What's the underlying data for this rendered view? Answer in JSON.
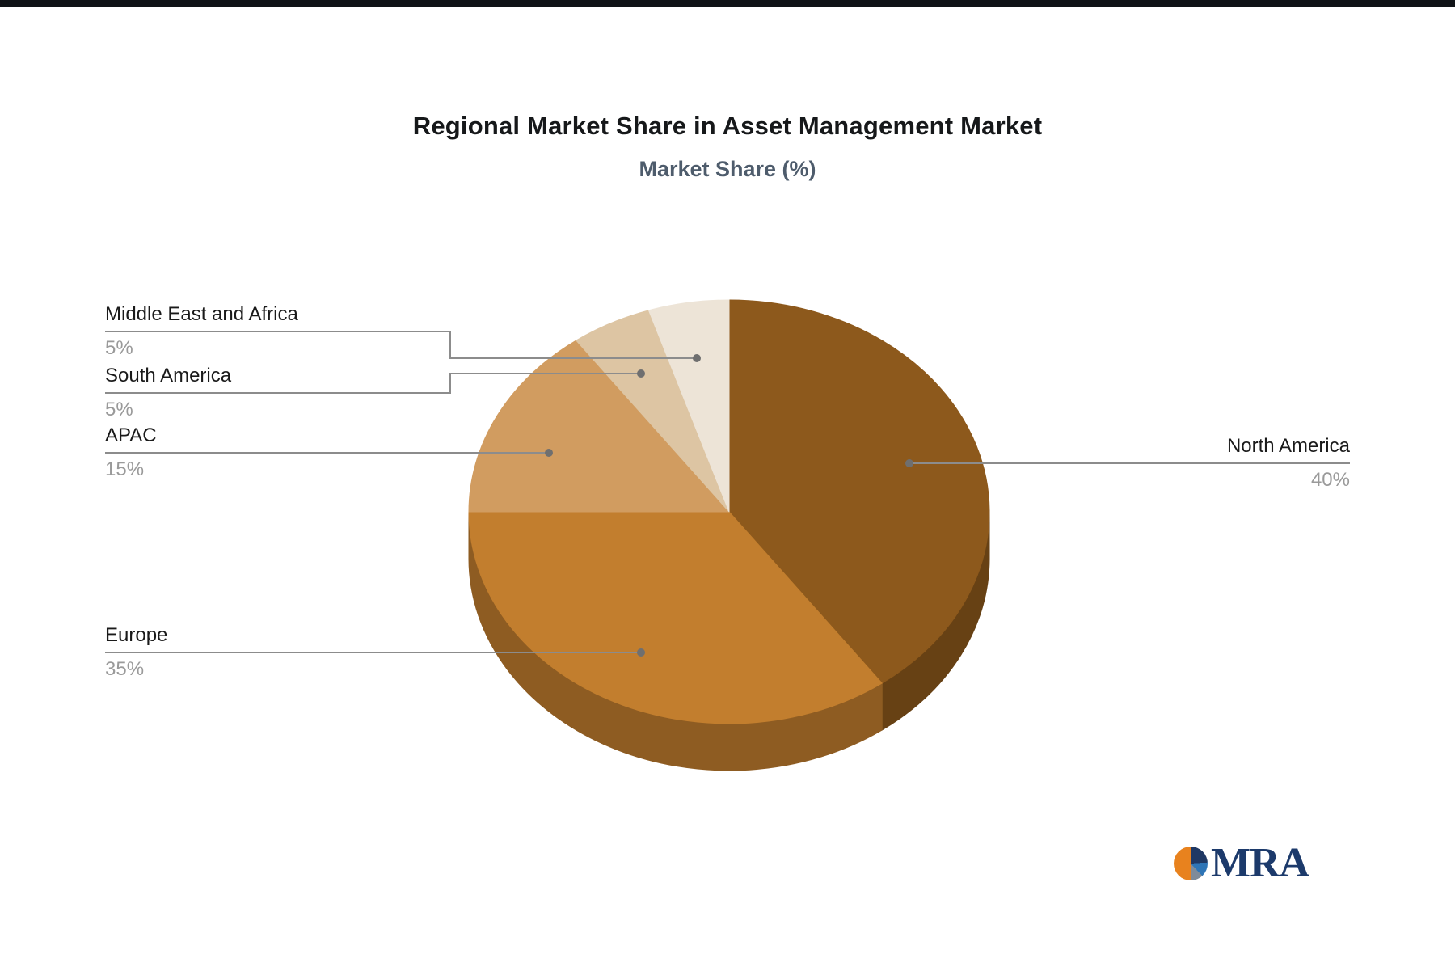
{
  "page": {
    "title": "Regional Market Share in Asset Management Market",
    "subtitle": "Market Share (%)"
  },
  "logo": {
    "text": "MRA"
  },
  "chart_data": {
    "type": "pie",
    "style": "3d",
    "title": "Regional Market Share in Asset Management Market",
    "subtitle": "Market Share (%)",
    "unit": "%",
    "direction": "clockwise",
    "start_angle": "12-o-clock",
    "legend_position": "none",
    "labels": [
      "North America",
      "Europe",
      "APAC",
      "South America",
      "Middle East and Africa"
    ],
    "values": [
      40,
      35,
      15,
      5,
      5
    ],
    "value_labels": [
      "40%",
      "35%",
      "15%",
      "5%",
      "5%"
    ],
    "colors": [
      "#8d591c",
      "#c27e2e",
      "#d19c60",
      "#ddc5a3",
      "#ede4d7"
    ],
    "leader_line_color": "#8c8c8c",
    "label_text_color": "#1a1a1a",
    "percent_text_color": "#9a9a9a"
  }
}
